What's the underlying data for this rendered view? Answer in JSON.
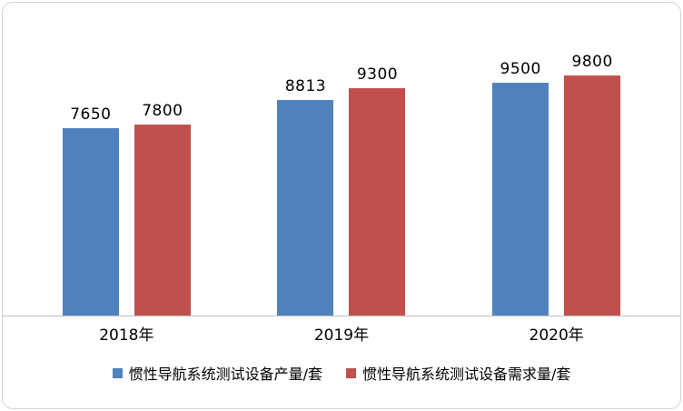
{
  "chart_data": {
    "type": "bar",
    "title": "",
    "categories": [
      "2018年",
      "2019年",
      "2020年"
    ],
    "series": [
      {
        "name": "惯性导航系统测试设备产量/套",
        "color": "#4F81BD",
        "values": [
          7650,
          8813,
          9500
        ]
      },
      {
        "name": "惯性导航系统测试设备需求量/套",
        "color": "#C0504D",
        "values": [
          7800,
          9300,
          9800
        ]
      }
    ],
    "xlabel": "",
    "ylabel": "",
    "ylim": [
      0,
      12400
    ],
    "grid": false,
    "legend_position": "bottom",
    "data_labels": true,
    "axis_line_color": "#bfbfbf",
    "frame_border_color": "#d4d4d4"
  }
}
